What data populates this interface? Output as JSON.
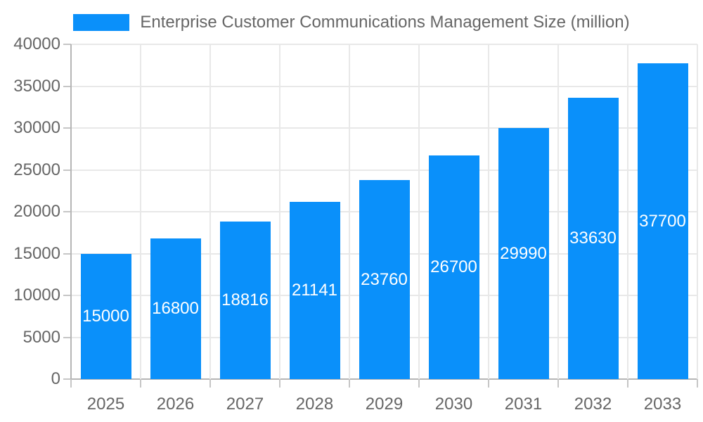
{
  "legend": {
    "position": "top",
    "items": [
      {
        "label": "Enterprise Customer Communications Management Size (million)",
        "swatch_color": "#0a90fa"
      }
    ]
  },
  "chart_data": {
    "type": "bar",
    "title": "Enterprise Customer Communications Management Size (million)",
    "categories": [
      "2025",
      "2026",
      "2027",
      "2028",
      "2029",
      "2030",
      "2031",
      "2032",
      "2033"
    ],
    "series": [
      {
        "name": "Enterprise Customer Communications Management Size (million)",
        "values": [
          15000,
          16800,
          18816,
          21141,
          23760,
          26700,
          29990,
          33630,
          37700
        ]
      }
    ],
    "data_labels": [
      "15000",
      "16800",
      "18816",
      "21141",
      "23760",
      "26700",
      "29990",
      "33630",
      "37700"
    ],
    "data_label_position": "inside-center",
    "xlabel": "",
    "ylabel": "",
    "ylim": [
      0,
      40000
    ],
    "y_tick_step": 5000,
    "y_tick_labels": [
      "0",
      "5000",
      "10000",
      "15000",
      "20000",
      "25000",
      "30000",
      "35000",
      "40000"
    ],
    "grid": true,
    "legend_position": "top"
  },
  "colors": {
    "background": "#ffffff",
    "bar": "#0a90fa",
    "bar_value_label": "#ffffff",
    "axis_text": "#666666",
    "legend_text": "#666666",
    "gridline": "#e8e8e8",
    "zero_line": "#b5b5b5",
    "tick_mark": "#c6c6c6"
  }
}
